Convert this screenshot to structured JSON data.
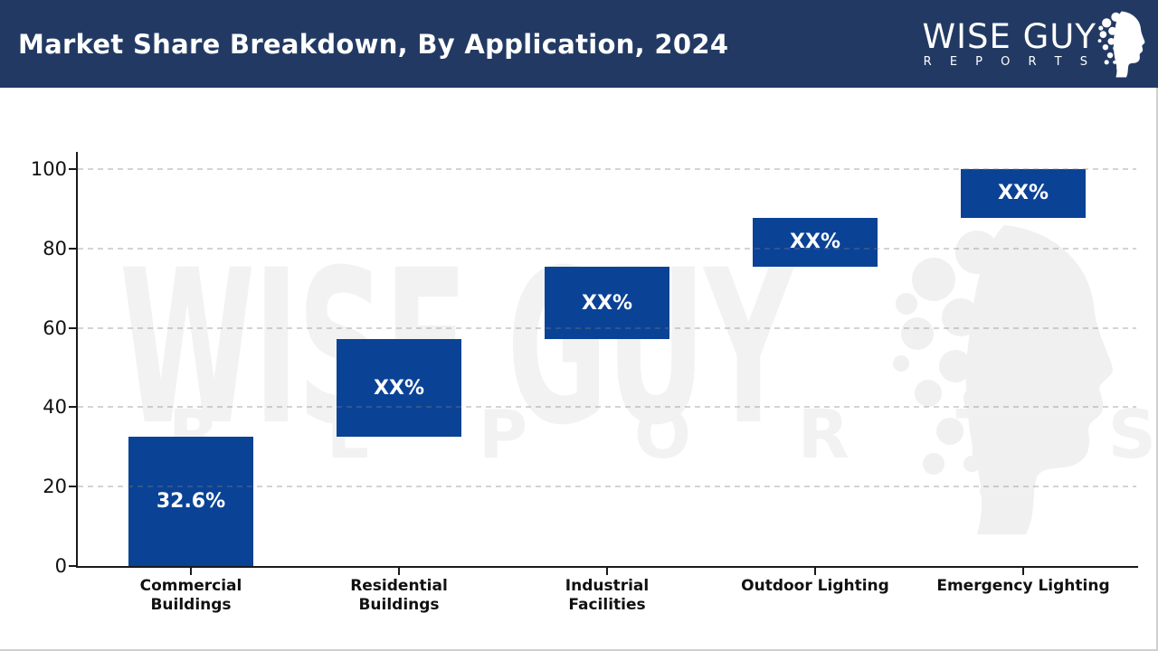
{
  "header": {
    "title": "Market Share Breakdown, By Application, 2024",
    "logo": {
      "wordmark": "WISE GUY",
      "subtitle": "R E P O R T S"
    }
  },
  "watermark": {
    "wordmark": "WISE GUY",
    "subtitle": "R E P O R T S"
  },
  "chart_data": {
    "type": "bar",
    "subtype": "waterfall",
    "title": "Market Share Breakdown, By Application, 2024",
    "categories": [
      "Commercial Buildings",
      "Residential Buildings",
      "Industrial Facilities",
      "Outdoor Lighting",
      "Emergency Lighting"
    ],
    "category_lines": [
      [
        "Commercial",
        "Buildings"
      ],
      [
        "Residential",
        "Buildings"
      ],
      [
        "Industrial",
        "Facilities"
      ],
      [
        "Outdoor Lighting"
      ],
      [
        "Emergency Lighting"
      ]
    ],
    "bars": [
      {
        "label": "32.6%",
        "start": 0,
        "end": 32.6
      },
      {
        "label": "XX%",
        "start": 32.6,
        "end": 57.1
      },
      {
        "label": "XX%",
        "start": 57.1,
        "end": 75.4
      },
      {
        "label": "XX%",
        "start": 75.4,
        "end": 87.8
      },
      {
        "label": "XX%",
        "start": 87.8,
        "end": 100
      }
    ],
    "y_ticks": [
      0,
      20,
      40,
      60,
      80,
      100
    ],
    "ylim": [
      0,
      104
    ],
    "xlabel": "",
    "ylabel": "",
    "grid": "horizontal-dashed",
    "legend": "none",
    "bar_color": "#0a4296",
    "bar_label_color": "#ffffff"
  },
  "colors": {
    "header_bg": "#223a63",
    "axis": "#1a1a1a",
    "grid": "#dedede",
    "watermark": "#f2f2f2",
    "page_bg": "#ffffff",
    "border": "#cfcfcf"
  }
}
